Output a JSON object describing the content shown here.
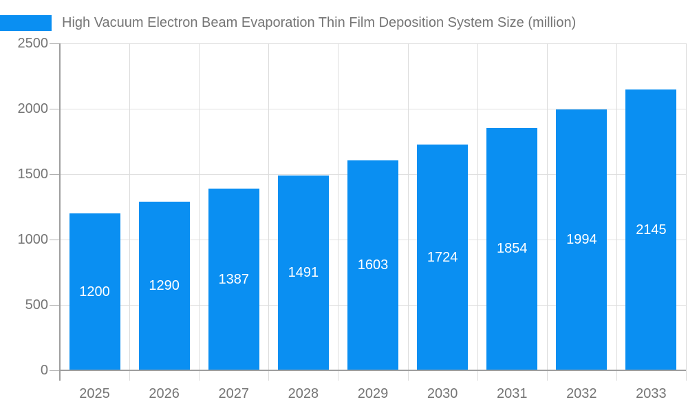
{
  "chart_data": {
    "type": "bar",
    "title": "High Vacuum Electron Beam Evaporation Thin Film Deposition System Size (million)",
    "series": [
      {
        "name": "High Vacuum Electron Beam Evaporation Thin Film Deposition System Size (million)",
        "values": [
          1200,
          1290,
          1387,
          1491,
          1603,
          1724,
          1854,
          1994,
          2145
        ]
      }
    ],
    "categories": [
      "2025",
      "2026",
      "2027",
      "2028",
      "2029",
      "2030",
      "2031",
      "2032",
      "2033"
    ],
    "values": [
      1200,
      1290,
      1387,
      1491,
      1603,
      1724,
      1854,
      1994,
      2145
    ],
    "xlabel": "",
    "ylabel": "",
    "ylim": [
      0,
      2500
    ],
    "y_ticks": [
      0,
      500,
      1000,
      1500,
      2000,
      2500
    ],
    "grid": true,
    "legend_position": "top-left",
    "value_label_position": "inside-center",
    "bar_color": "#0a8ff2",
    "value_label_color": "#ffffff",
    "axis_text_color": "#757575"
  }
}
